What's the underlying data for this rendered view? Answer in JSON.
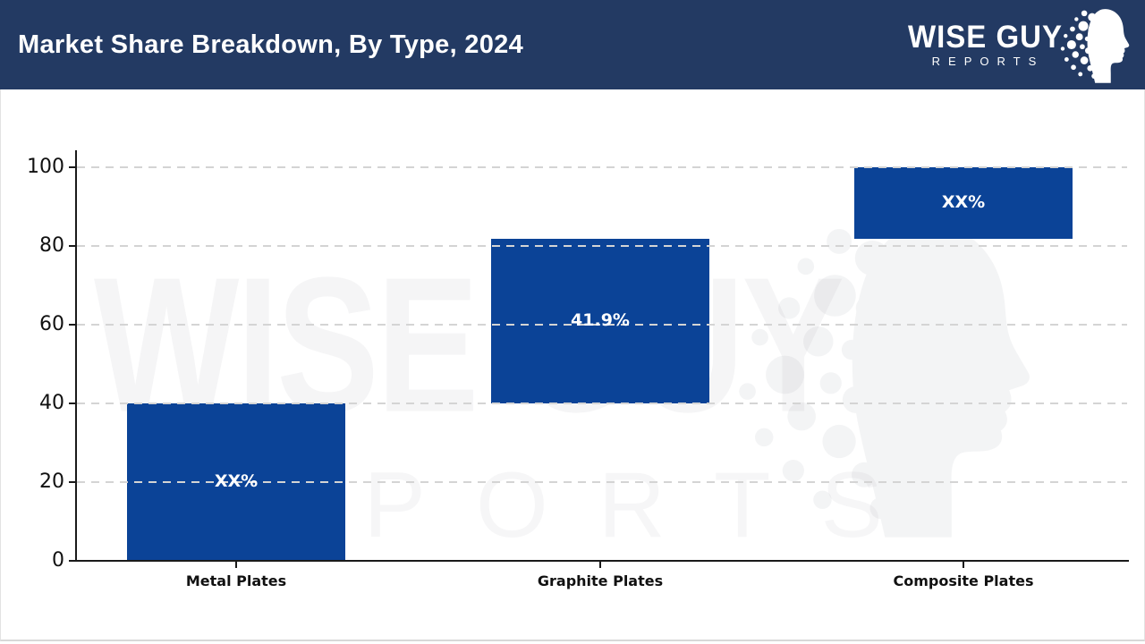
{
  "header": {
    "title": "Market Share Breakdown, By Type, 2024",
    "logo": {
      "wordmark": "WISE GUY",
      "wordmark_sub": "REPORTS",
      "icon": "dotted-head-profile"
    }
  },
  "watermark": {
    "wordmark": "WISE GUY",
    "wordmark_sub": "REPORTS",
    "icon": "dotted-head-profile"
  },
  "chart_data": {
    "type": "bar",
    "variant": "waterfall",
    "title": "Market Share Breakdown, By Type, 2024",
    "categories": [
      "Metal Plates",
      "Graphite Plates",
      "Composite Plates"
    ],
    "segments": [
      {
        "category": "Metal Plates",
        "start": 0,
        "end": 40,
        "size": 40,
        "label": "XX%"
      },
      {
        "category": "Graphite Plates",
        "start": 40,
        "end": 81.9,
        "size": 41.9,
        "label": "41.9%"
      },
      {
        "category": "Composite Plates",
        "start": 81.9,
        "end": 100,
        "size": 18.1,
        "label": "XX%"
      }
    ],
    "xlabel": "",
    "ylabel": "",
    "ylim": [
      0,
      100
    ],
    "yticks": [
      0,
      20,
      40,
      60,
      80,
      100
    ],
    "grid": "horizontal-dashed",
    "legend": "none",
    "bar_color": "#0b4397"
  },
  "colors": {
    "header_bg": "#233a63",
    "bar": "#0b4397",
    "grid": "#d4d4d4",
    "axis": "#1a1a1a",
    "watermark": "rgba(15,25,45,0.045)"
  }
}
